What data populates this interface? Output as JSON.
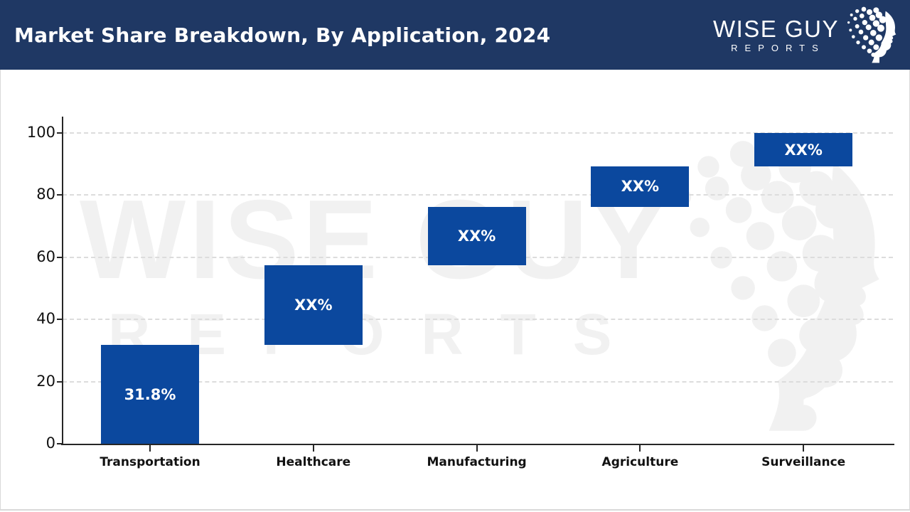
{
  "header": {
    "title": "Market Share Breakdown, By Application, 2024",
    "logo": {
      "line1": "WISE GUY",
      "line2": "REPORTS"
    }
  },
  "watermark": {
    "line1": "WISE GUY",
    "line2": "REPORTS"
  },
  "colors": {
    "header_bg": "#1f3864",
    "bar": "#0b489e",
    "grid": "#dcdcdc",
    "axis": "#262626",
    "bar_label": "#ffffff",
    "watermark": "#f1f1f1"
  },
  "chart_data": {
    "type": "bar",
    "variant": "waterfall",
    "title": "Market Share Breakdown, By Application, 2024",
    "categories": [
      "Transportation",
      "Healthcare",
      "Manufacturing",
      "Agriculture",
      "Surveillance"
    ],
    "segments": [
      {
        "category": "Transportation",
        "start": 0,
        "end": 31.8,
        "value": 31.8,
        "label": "31.8%"
      },
      {
        "category": "Healthcare",
        "start": 31.8,
        "end": 57.5,
        "value": 25.7,
        "label": "XX%"
      },
      {
        "category": "Manufacturing",
        "start": 57.5,
        "end": 76.3,
        "value": 18.8,
        "label": "XX%"
      },
      {
        "category": "Agriculture",
        "start": 76.3,
        "end": 89.2,
        "value": 12.9,
        "label": "XX%"
      },
      {
        "category": "Surveillance",
        "start": 89.2,
        "end": 100,
        "value": 10.8,
        "label": "XX%"
      }
    ],
    "xlabel": "",
    "ylabel": "",
    "ylim": [
      0,
      100
    ],
    "yticks": [
      0,
      20,
      40,
      60,
      80,
      100
    ],
    "grid": {
      "horizontal": true,
      "style": "dashed"
    },
    "legend": "none"
  }
}
